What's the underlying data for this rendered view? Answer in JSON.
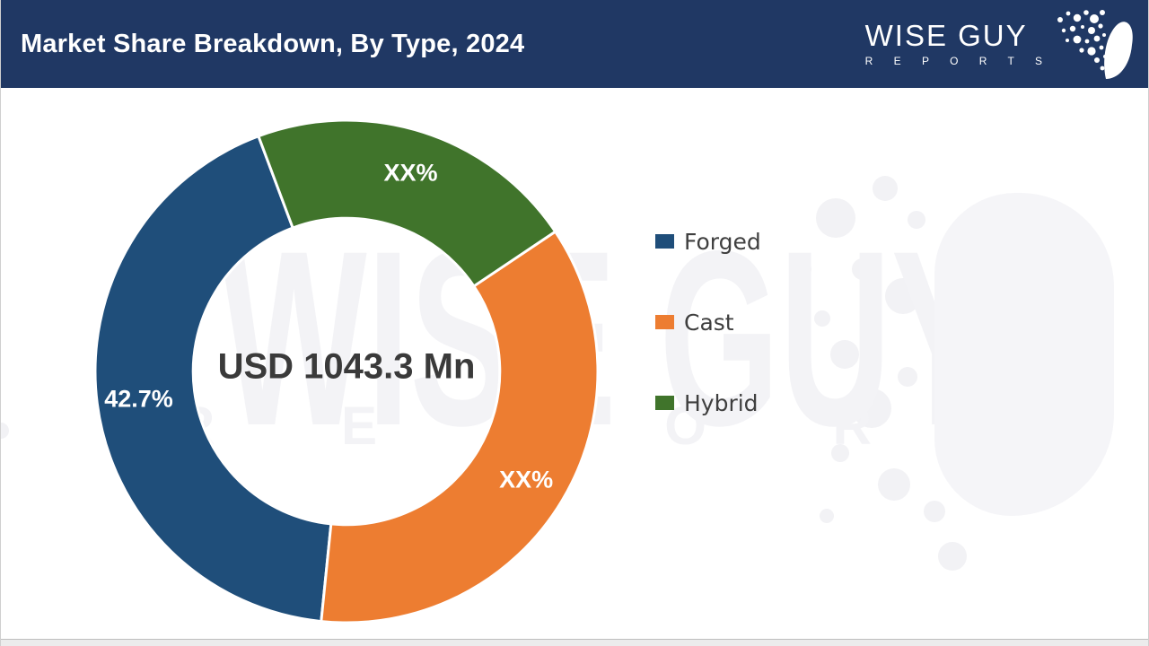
{
  "header": {
    "title": "Market Share Breakdown, By Type, 2024",
    "background_color": "#203864",
    "logo": {
      "line1": "WISE GUY",
      "line2": "R E P O R T S",
      "icon": "dotted-face-profile"
    }
  },
  "legend": {
    "position": "right",
    "items": [
      {
        "label": "Forged",
        "color": "#1F4E7A"
      },
      {
        "label": "Cast",
        "color": "#ED7D31"
      },
      {
        "label": "Hybrid",
        "color": "#40742B"
      }
    ]
  },
  "chart_data": {
    "type": "pie",
    "subtype": "donut",
    "title": "Market Share Breakdown, By Type, 2024",
    "center_label": "USD 1043.3 Mn",
    "categories": [
      "Forged",
      "Cast",
      "Hybrid"
    ],
    "values": [
      42.7,
      36.0,
      21.3
    ],
    "labels_displayed": [
      "42.7%",
      "XX%",
      "XX%"
    ],
    "colors": [
      "#1F4E7A",
      "#ED7D31",
      "#40742B"
    ],
    "start_angle_deg": 110.5,
    "direction": "counterclockwise",
    "hole_ratio": 0.61,
    "legend_position": "right",
    "label_color": "#ffffff"
  },
  "watermark": {
    "line1": "WISE GUY",
    "line2": "R E P O R T S"
  }
}
